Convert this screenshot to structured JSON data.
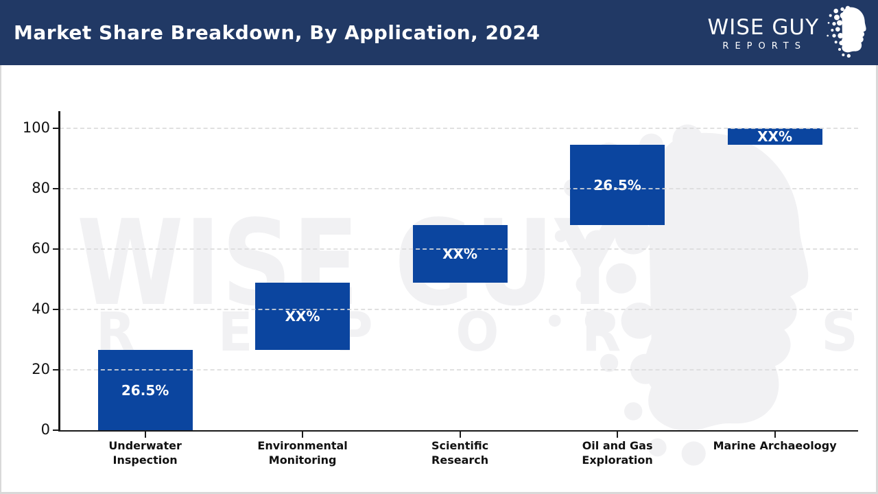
{
  "header": {
    "title": "Market Share Breakdown, By Application, 2024",
    "bg_color": "#213965",
    "logo": {
      "name": "WISE GUY",
      "subtitle": "REPORTS"
    }
  },
  "watermark": {
    "name": "WISE GUY",
    "subtitle": "R E P O R T S"
  },
  "chart_data": {
    "type": "bar",
    "subtype": "floating-waterfall",
    "title": "Market Share Breakdown, By Application, 2024",
    "categories": [
      "Underwater Inspection",
      "Environmental Monitoring",
      "Scientific Research",
      "Oil and Gas Exploration",
      "Marine Archaeology"
    ],
    "category_label_lines": [
      "Underwater\nInspection",
      "Environmental\nMonitoring",
      "Scientific\nResearch",
      "Oil and Gas\nExploration",
      "Marine Archaeology"
    ],
    "segments": [
      {
        "category": "Underwater Inspection",
        "start": 0,
        "end": 26.5,
        "label": "26.5%"
      },
      {
        "category": "Environmental Monitoring",
        "start": 26.5,
        "end": 49,
        "label": "XX%"
      },
      {
        "category": "Scientific Research",
        "start": 49,
        "end": 68,
        "label": "XX%"
      },
      {
        "category": "Oil and Gas Exploration",
        "start": 68,
        "end": 94.5,
        "label": "26.5%"
      },
      {
        "category": "Marine Archaeology",
        "start": 94.5,
        "end": 100,
        "label": "XX%"
      }
    ],
    "yticks": [
      0,
      20,
      40,
      60,
      80,
      100
    ],
    "ylim": [
      0,
      105.8
    ],
    "xlabel": "",
    "ylabel": "",
    "bar_color": "#0b459f",
    "grid": "horizontal-dashed",
    "legend": "none"
  }
}
